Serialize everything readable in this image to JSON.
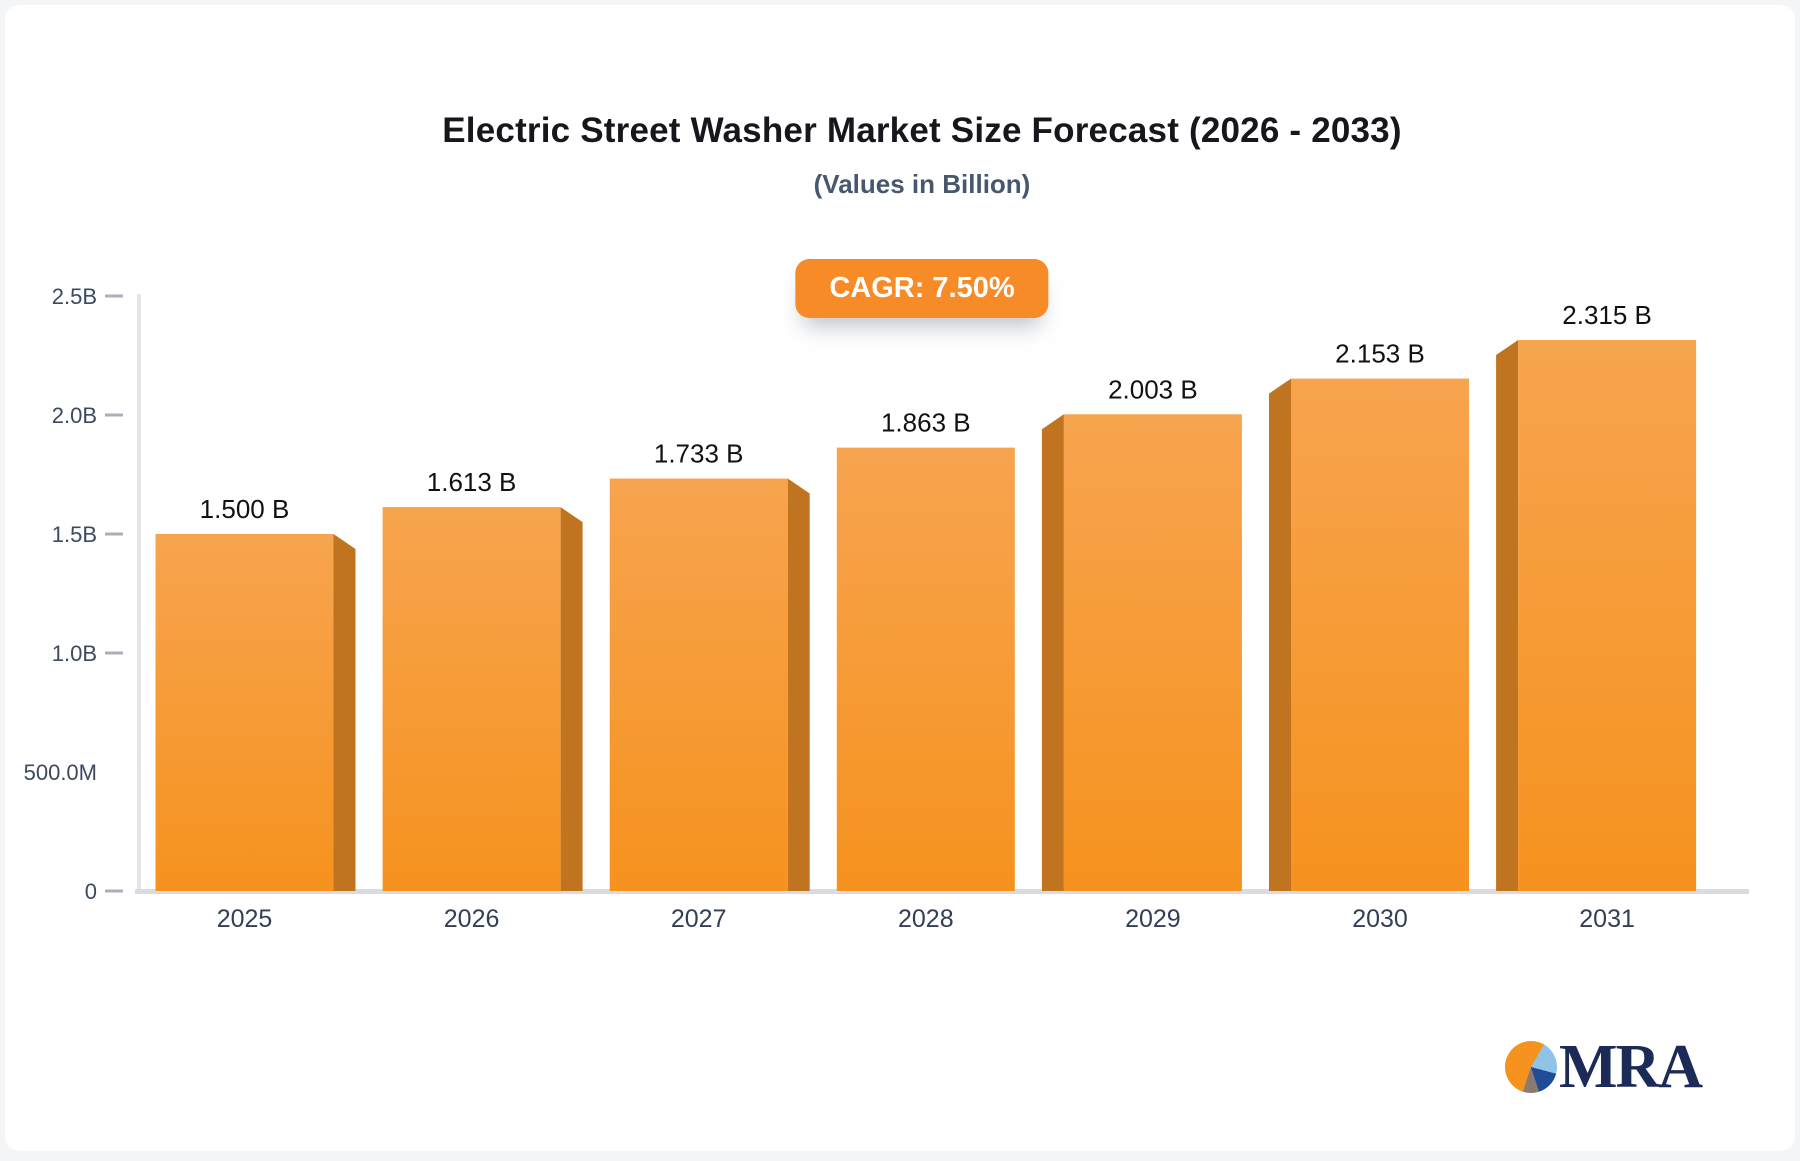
{
  "header": {
    "title": "Electric Street Washer Market Size Forecast (2026 - 2033)",
    "subtitle": "(Values in Billion)"
  },
  "badge": {
    "label": "CAGR: 7.50%",
    "bg": "#f68b28",
    "text_color": "#ffffff"
  },
  "chart_data": {
    "type": "bar",
    "title": "Electric Street Washer Market Size Forecast (2026 - 2033)",
    "subtitle": "(Values in Billion)",
    "cagr": "7.50%",
    "categories": [
      "2025",
      "2026",
      "2027",
      "2028",
      "2029",
      "2030",
      "2031"
    ],
    "values": [
      1.5,
      1.613,
      1.733,
      1.863,
      2.003,
      2.153,
      2.315
    ],
    "value_labels": [
      "1.500 B",
      "1.613 B",
      "1.733 B",
      "1.863 B",
      "2.003 B",
      "2.153 B",
      "2.315 B"
    ],
    "ylim": [
      0,
      2.5
    ],
    "yticks": [
      {
        "value": 0,
        "label": "0",
        "dash": true
      },
      {
        "value": 0.5,
        "label": "500.0M",
        "dash": false
      },
      {
        "value": 1.0,
        "label": "1.0B",
        "dash": true
      },
      {
        "value": 1.5,
        "label": "1.5B",
        "dash": true
      },
      {
        "value": 2.0,
        "label": "2.0B",
        "dash": true
      },
      {
        "value": 2.5,
        "label": "2.5B",
        "dash": true
      }
    ],
    "grid": false,
    "legend": "none",
    "colors": {
      "bar_face_top": "#f7a44f",
      "bar_face_bottom": "#f6921e",
      "bar_side": "#c17420",
      "axis_line": "#e3e5e9",
      "baseline": "#d8dbdf",
      "tick_dash": "#aab0b9",
      "y_label": "#3c4a60",
      "x_label": "#333f54",
      "value_label": "#101114"
    }
  },
  "logo": {
    "text": "MRA",
    "text_color": "#1c2a57",
    "pie_slices": {
      "orange": "#f6921e",
      "light_blue": "#8fc3e8",
      "navy": "#1f4c94",
      "taupe": "#8c7a70"
    }
  }
}
